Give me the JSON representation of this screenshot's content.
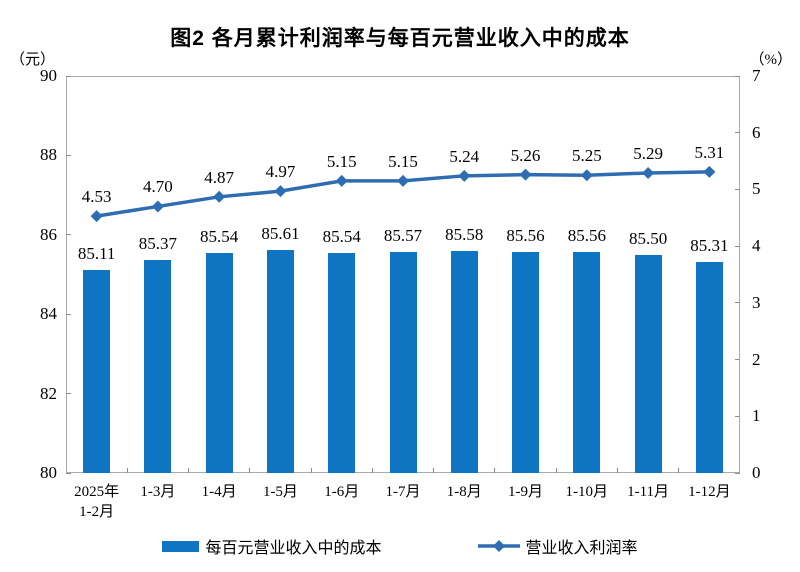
{
  "title": "图2 各月累计利润率与每百元营业收入中的成本",
  "left_axis_unit": "（元）",
  "right_axis_unit": "（%）",
  "colors": {
    "bar": "#0F74C2",
    "line": "#2E6DB2",
    "axis_line": "#A9A9A9",
    "tick": "#8C8C8C",
    "text": "#000000"
  },
  "legend": [
    {
      "label": "每百元营业收入中的成本",
      "type": "bar"
    },
    {
      "label": "营业收入利润率",
      "type": "line"
    }
  ],
  "chart_data": {
    "type": "bar+line",
    "title": "图2 各月累计利润率与每百元营业收入中的成本",
    "categories": [
      [
        "2025年",
        "1-2月"
      ],
      [
        "1-3月"
      ],
      [
        "1-4月"
      ],
      [
        "1-5月"
      ],
      [
        "1-6月"
      ],
      [
        "1-7月"
      ],
      [
        "1-8月"
      ],
      [
        "1-9月"
      ],
      [
        "1-10月"
      ],
      [
        "1-11月"
      ],
      [
        "1-12月"
      ]
    ],
    "series": [
      {
        "name": "每百元营业收入中的成本",
        "type": "bar",
        "axis": "left",
        "unit": "元",
        "values": [
          85.11,
          85.37,
          85.54,
          85.61,
          85.54,
          85.57,
          85.58,
          85.56,
          85.56,
          85.5,
          85.31
        ]
      },
      {
        "name": "营业收入利润率",
        "type": "line",
        "axis": "right",
        "unit": "%",
        "values": [
          4.53,
          4.7,
          4.87,
          4.97,
          5.15,
          5.15,
          5.24,
          5.26,
          5.25,
          5.29,
          5.31
        ]
      }
    ],
    "left_axis": {
      "unit": "（元）",
      "min": 80,
      "max": 90,
      "step": 2,
      "ticks": [
        90,
        88,
        86,
        84,
        82,
        80
      ]
    },
    "right_axis": {
      "unit": "（%）",
      "min": 0,
      "max": 7,
      "step": 1,
      "ticks": [
        7,
        6,
        5,
        4,
        3,
        2,
        1,
        0
      ]
    },
    "grid": false,
    "legend_position": "bottom"
  }
}
